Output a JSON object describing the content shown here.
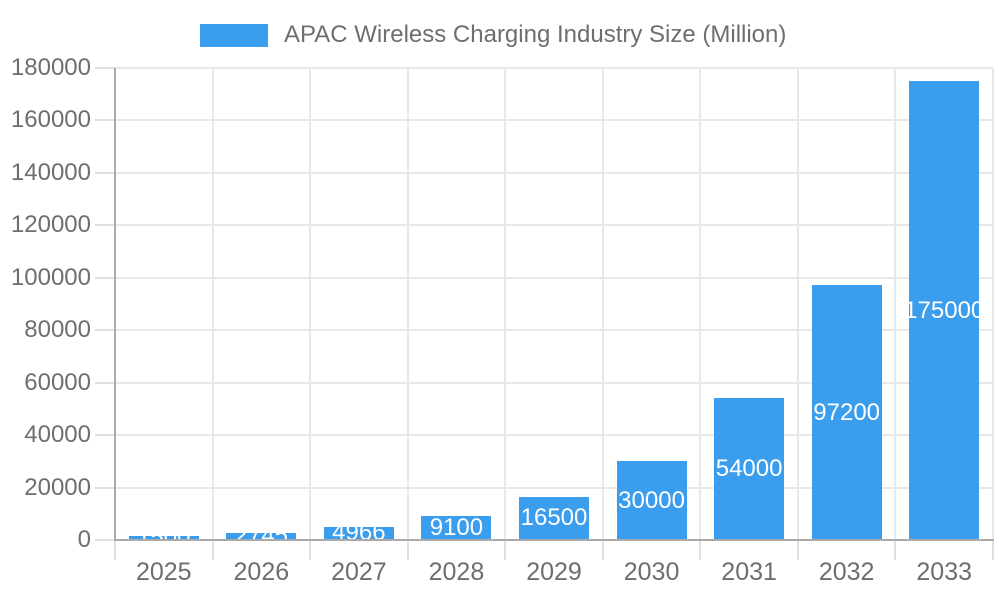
{
  "legend": {
    "label": "APAC Wireless Charging Industry Size (Million)"
  },
  "chart_data": {
    "type": "bar",
    "title": "APAC Wireless Charging Industry Size (Million)",
    "categories": [
      "2025",
      "2026",
      "2027",
      "2028",
      "2029",
      "2030",
      "2031",
      "2032",
      "2033"
    ],
    "series": [
      {
        "name": "APAC Wireless Charging Industry Size (Million)",
        "values": [
          1500,
          2745,
          4966,
          9100,
          16500,
          30000,
          54000,
          97200,
          175000
        ]
      }
    ],
    "value_labels": [
      "1500",
      "2745",
      "4966",
      "9100",
      "16500",
      "30000",
      "54000",
      "97200",
      "175000"
    ],
    "xlabel": "",
    "ylabel": "",
    "ylim": [
      0,
      180000
    ],
    "yticks": [
      0,
      20000,
      40000,
      60000,
      80000,
      100000,
      120000,
      140000,
      160000,
      180000
    ],
    "grid": true,
    "legend_position": "top",
    "value_label_style": "white-centered-inside-bar"
  },
  "colors": {
    "bar": "#3b9dee",
    "gridline": "#e8e8e8",
    "tick_mark": "#e0e0e0",
    "axis_line": "#aaaaaa",
    "axis_text": "#6e6e6e",
    "value_label_text": "#ffffff",
    "background": "#ffffff"
  }
}
